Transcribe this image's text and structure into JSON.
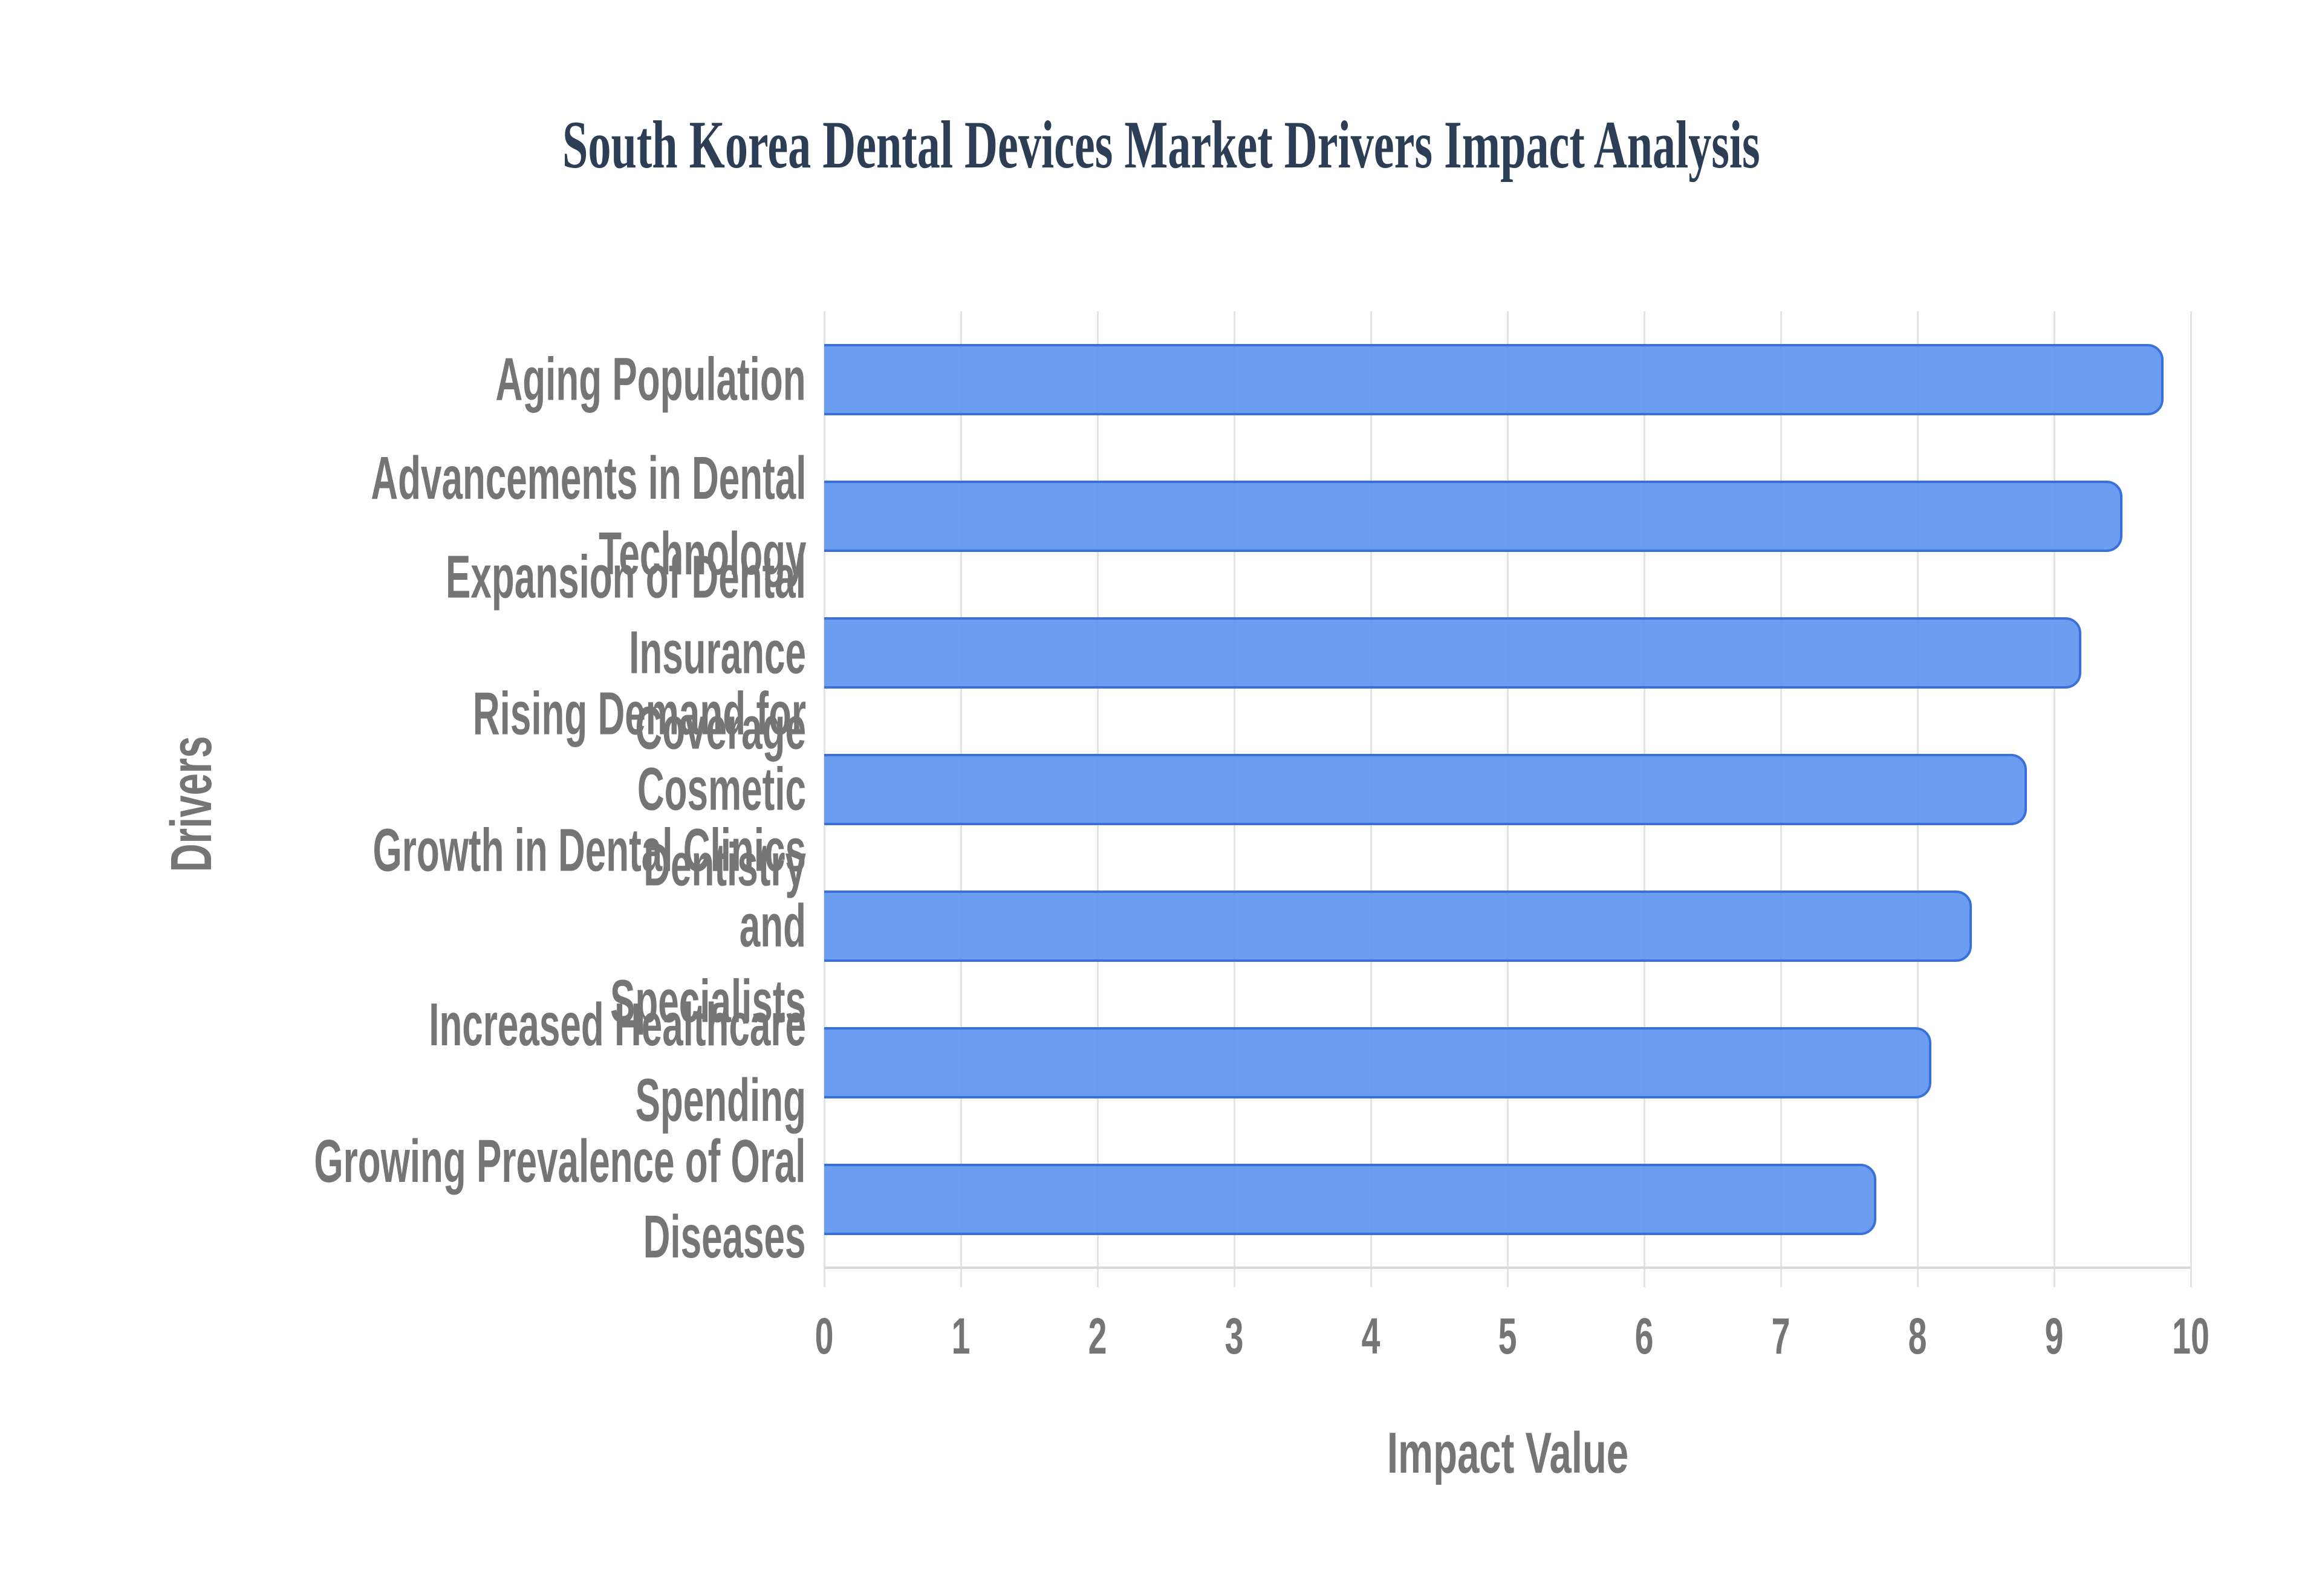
{
  "page": {
    "background": "#ffffff"
  },
  "chart_data": {
    "type": "bar",
    "orientation": "horizontal",
    "title": "South Korea Dental Devices Market Drivers Impact Analysis",
    "categories": [
      "Aging Population",
      "Advancements in Dental\nTechnology",
      "Expansion of Dental Insurance\nCoverage",
      "Rising Demand for Cosmetic\nDentistry",
      "Growth in Dental Clinics and\nSpecialists",
      "Increased Healthcare Spending",
      "Growing Prevalence of Oral\nDiseases"
    ],
    "values": [
      9.8,
      9.5,
      9.2,
      8.8,
      8.4,
      8.1,
      7.7
    ],
    "xlabel": "Impact Value",
    "ylabel": "Drivers",
    "xlim": [
      0,
      10
    ],
    "xticks": [
      "0",
      "1",
      "2",
      "3",
      "4",
      "5",
      "6",
      "7",
      "8",
      "9",
      "10"
    ],
    "grid": "vertical-only",
    "legend": false,
    "colors": {
      "bar_fill": "#5b92f0",
      "bar_border": "#3a70dd",
      "grid_line": "#e4e4e4",
      "axis_line": "#d9d9d9",
      "tick_text": "#757575",
      "category_text": "#757575",
      "axis_title_text": "#757575",
      "title_text": "#2c3e55"
    }
  }
}
